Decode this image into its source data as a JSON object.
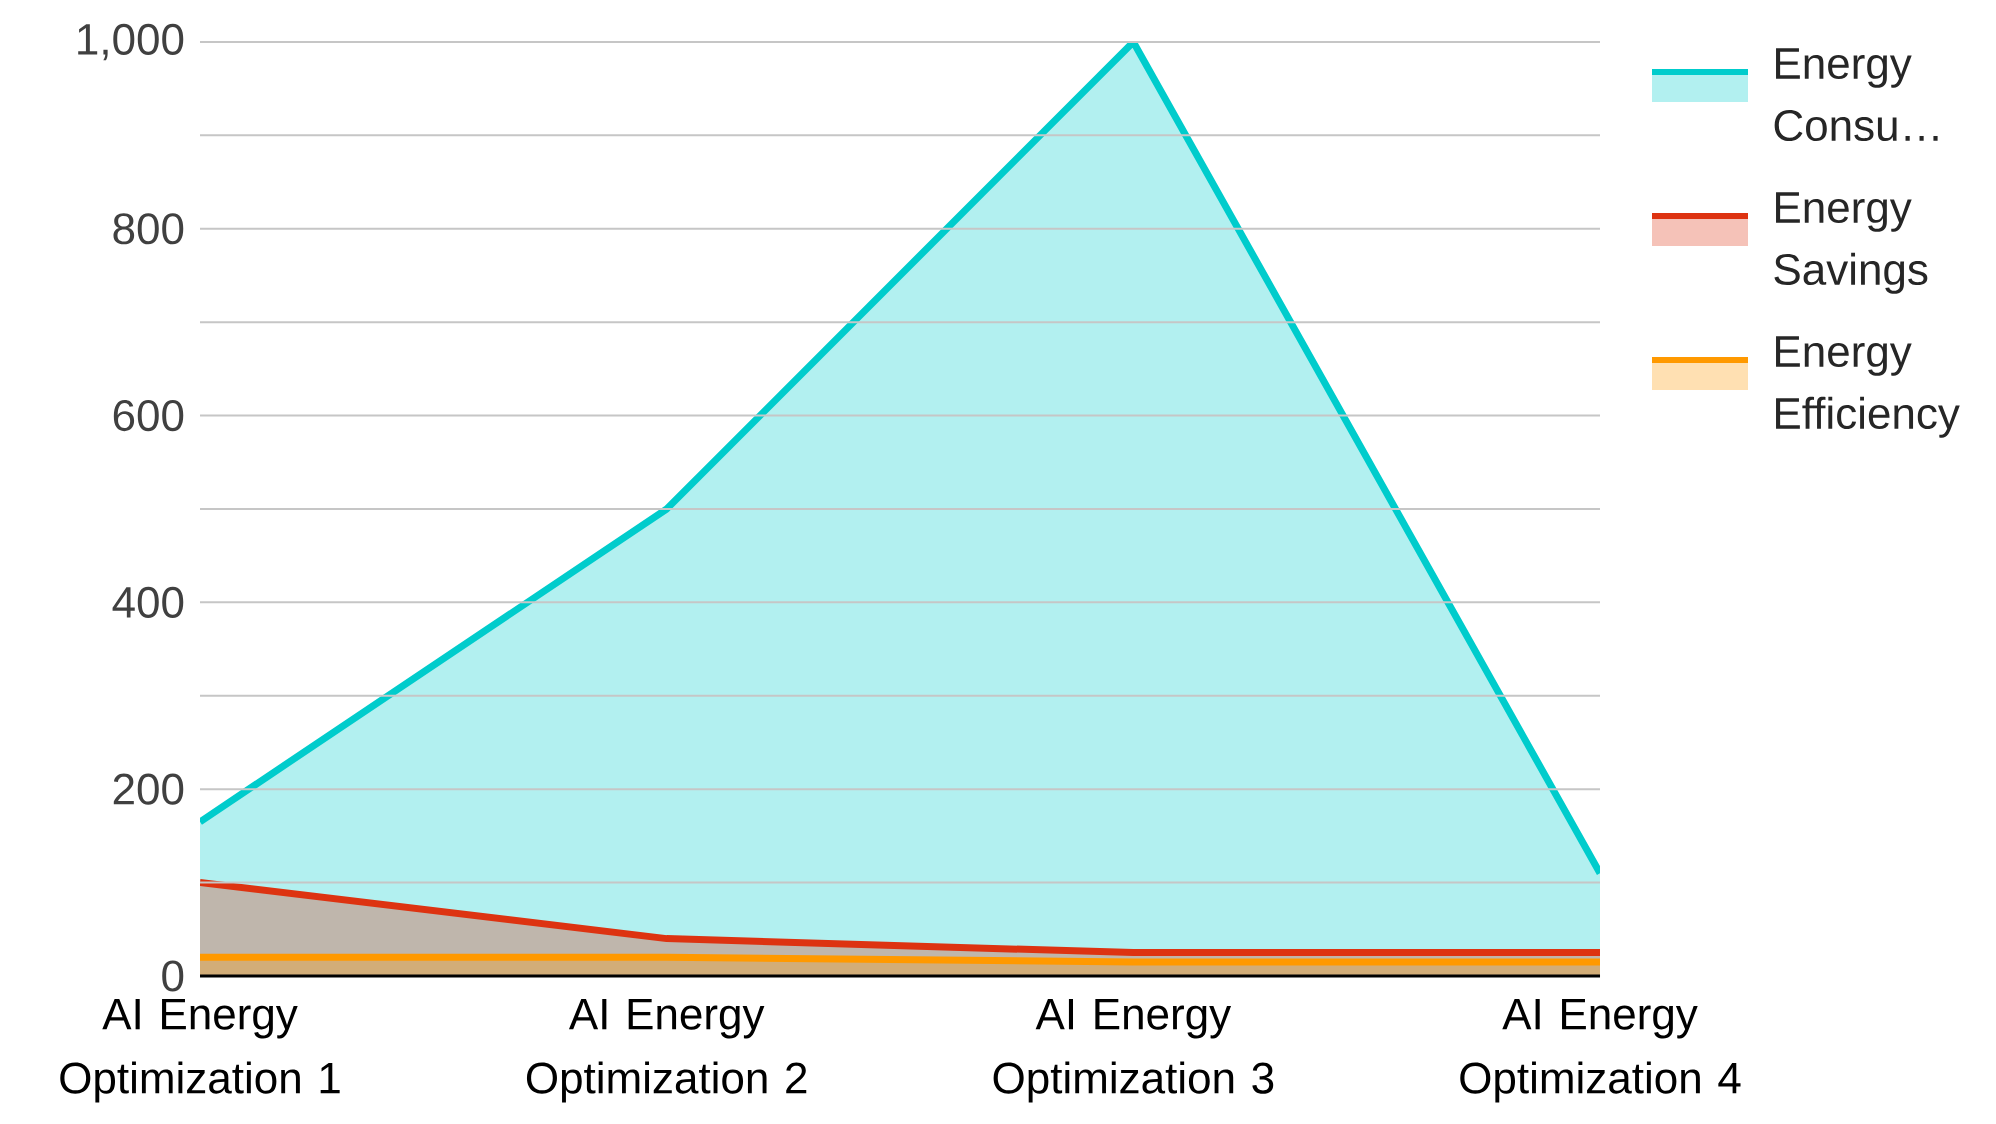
{
  "chart_data": {
    "type": "area",
    "categories": [
      "AI Energy Optimization 1",
      "AI Energy Optimization 2",
      "AI Energy Optimization 3",
      "AI Energy Optimization 4"
    ],
    "series": [
      {
        "name": "Energy Consu…",
        "color": "#00cccc",
        "values": [
          165,
          500,
          1000,
          110
        ]
      },
      {
        "name": "Energy Savings",
        "color": "#dd3311",
        "values": [
          100,
          40,
          25,
          25
        ]
      },
      {
        "name": "Energy Efficiency",
        "color": "#ff9900",
        "values": [
          20,
          20,
          15,
          15
        ]
      }
    ],
    "ylim": [
      0,
      1000
    ],
    "yticks": [
      0,
      {
        "value": 100,
        "label": null
      },
      200,
      {
        "value": 300,
        "label": null
      },
      400,
      {
        "value": 500,
        "label": null
      },
      600,
      {
        "value": 700,
        "label": null
      },
      800,
      {
        "value": 900,
        "label": null
      },
      {
        "value": 1000,
        "label": "1,000"
      }
    ],
    "grid": "y",
    "legend": "right"
  }
}
